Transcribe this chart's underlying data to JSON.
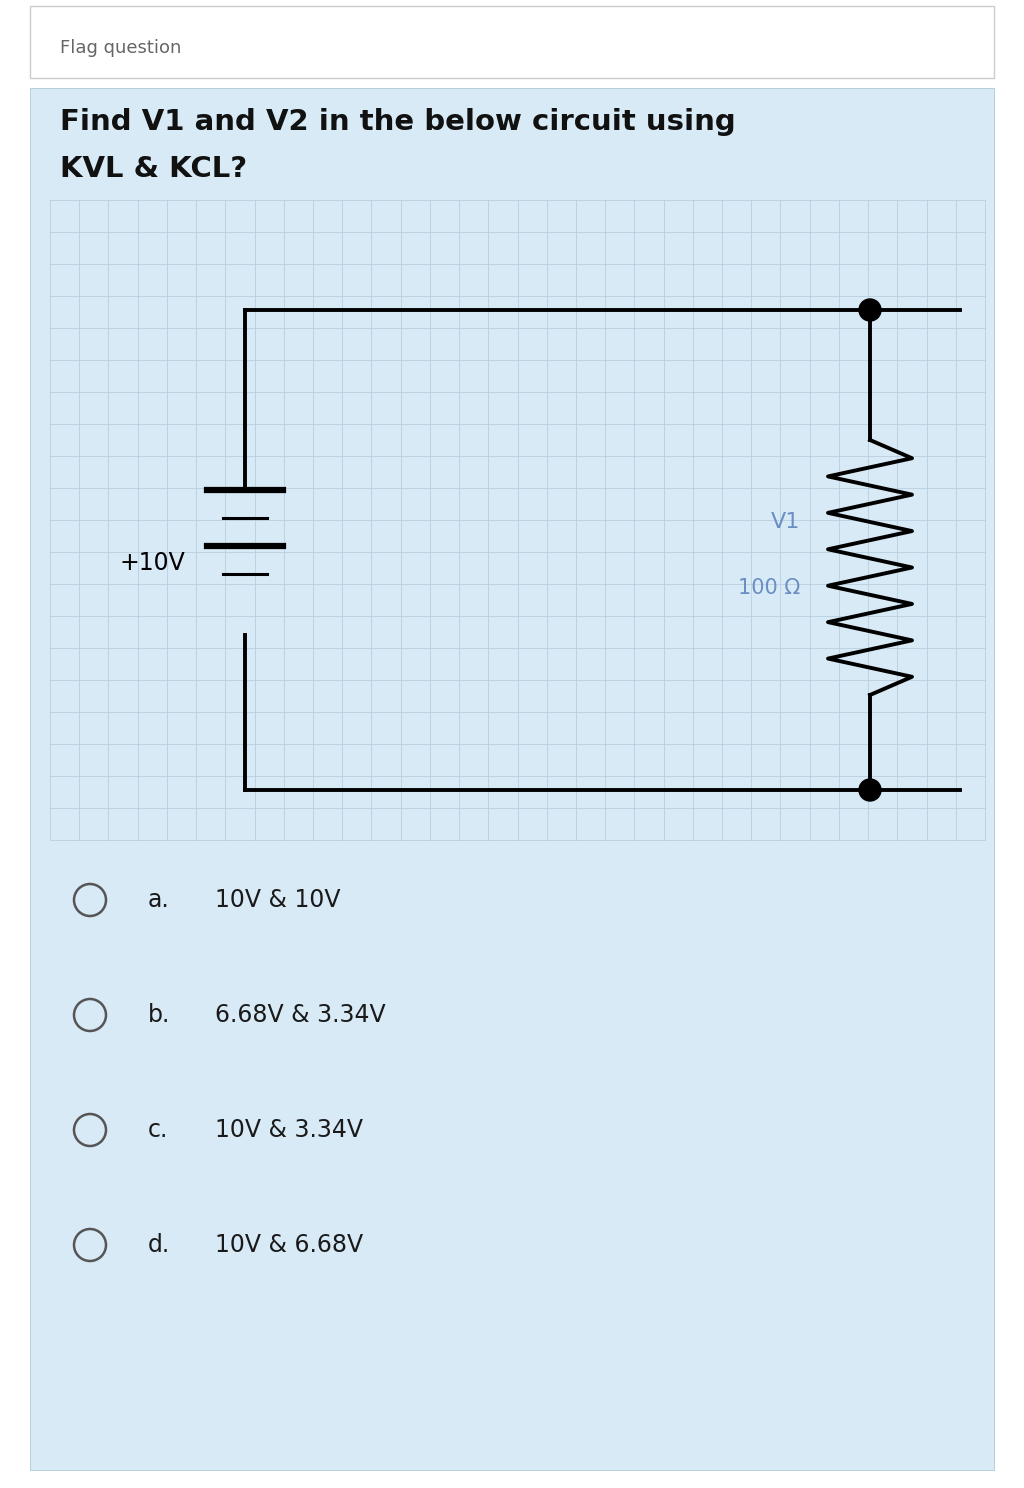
{
  "bg_color_outer": "#ffffff",
  "bg_color_panel": "#d8eaf6",
  "grid_color": "#b8cfe0",
  "circuit_line_color": "#000000",
  "label_v1_color": "#6b8fc4",
  "title_line1": "Find V1 and V2 in the below circuit using",
  "title_line2": "KVL & KCL?",
  "title_fontsize": 21,
  "battery_label": "+10V",
  "resistor_label_top": "V1",
  "resistor_label_bot": "100 Ω",
  "options": [
    {
      "letter": "a.",
      "text": "10V & 10V"
    },
    {
      "letter": "b.",
      "text": "6.68V & 3.34V"
    },
    {
      "letter": "c.",
      "text": "10V & 3.34V"
    },
    {
      "letter": "d.",
      "text": "10V & 6.68V"
    }
  ],
  "options_fontsize": 17,
  "line_width": 2.8,
  "flag_text": "Flag question"
}
